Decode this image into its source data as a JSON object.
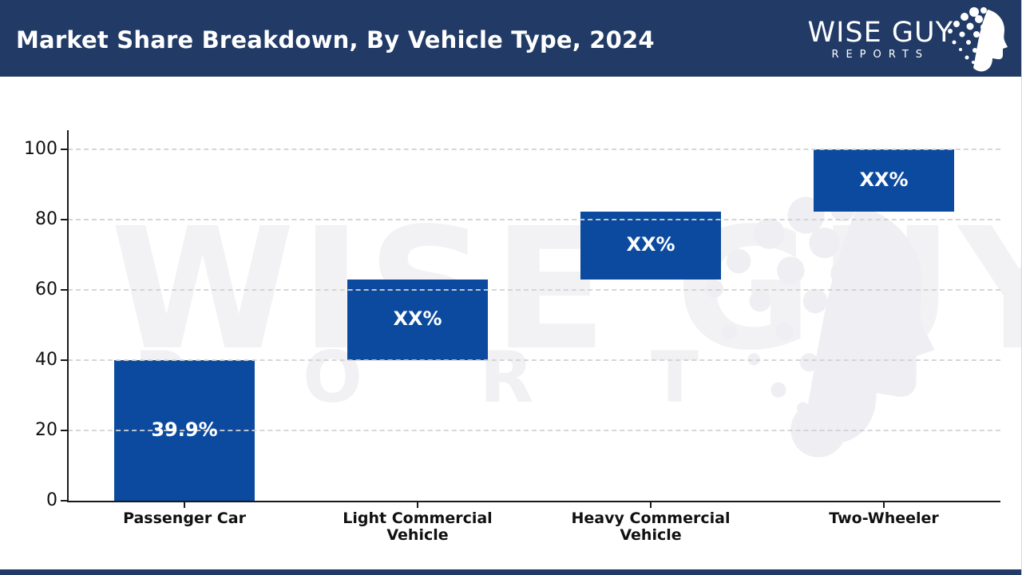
{
  "header": {
    "title": "Market Share Breakdown, By Vehicle Type, 2024",
    "logo": {
      "line1": "WISE GUY",
      "line2": "REPORTS"
    }
  },
  "watermark": {
    "line1": "WISE GUY",
    "line2": "P O R T S"
  },
  "chart_data": {
    "type": "bar",
    "subtype": "waterfall",
    "title": "Market Share Breakdown, By Vehicle Type, 2024",
    "categories": [
      "Passenger Car",
      "Light Commercial\nVehicle",
      "Heavy Commercial\nVehicle",
      "Two-Wheeler"
    ],
    "segments": [
      [
        0,
        39.9
      ],
      [
        40,
        63
      ],
      [
        63,
        82.3
      ],
      [
        82.3,
        100
      ]
    ],
    "bar_labels": [
      "39.9%",
      "XX%",
      "XX%",
      "XX%"
    ],
    "ylim": [
      0,
      100
    ],
    "yticks": [
      0,
      20,
      40,
      60,
      80,
      100
    ],
    "grid": "horizontal-dashed",
    "legend": "none",
    "xlabel": "",
    "ylabel": ""
  },
  "colors": {
    "header_bg": "#213a66",
    "footer_bg": "#213a66",
    "bar": "#0b4a9e",
    "bar_label": "#ffffff",
    "grid": "#d2d2d2",
    "axis": "#1a1a1a",
    "watermark": "#f2f2f5"
  }
}
